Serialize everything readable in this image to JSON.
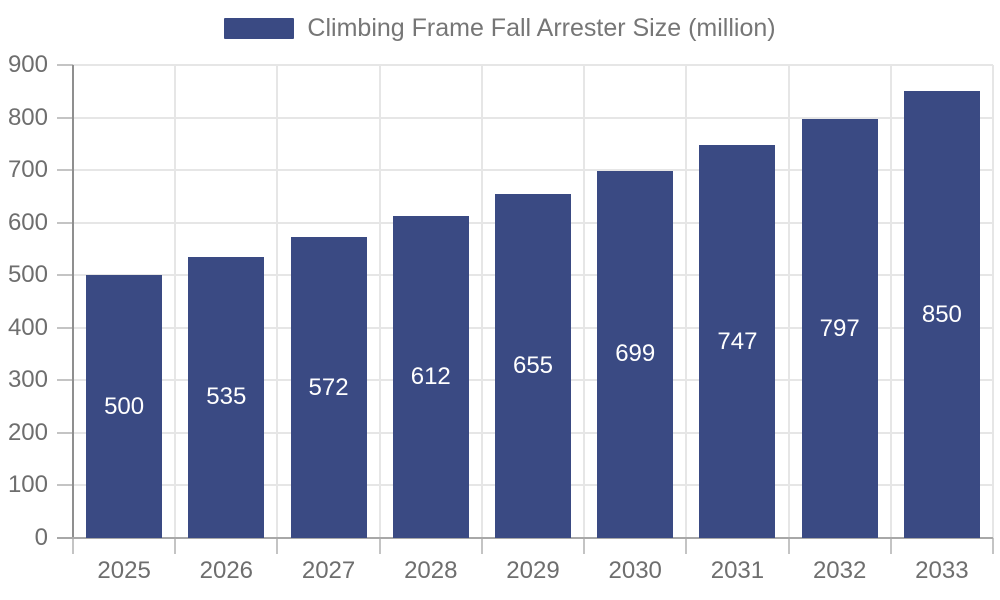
{
  "legend": {
    "label": "Climbing Frame Fall Arrester Size (million)"
  },
  "chart_data": {
    "type": "bar",
    "title": "Climbing Frame Fall Arrester Size (million)",
    "series_name": "Climbing Frame Fall Arrester Size (million)",
    "categories": [
      "2025",
      "2026",
      "2027",
      "2028",
      "2029",
      "2030",
      "2031",
      "2032",
      "2033"
    ],
    "values": [
      500,
      535,
      572,
      612,
      655,
      699,
      747,
      797,
      850
    ],
    "xlabel": "",
    "ylabel": "",
    "ylim": [
      0,
      900
    ],
    "ytick_step": 100,
    "ytick_labels": [
      "0",
      "100",
      "200",
      "300",
      "400",
      "500",
      "600",
      "700",
      "800",
      "900"
    ],
    "grid": "on",
    "legend_position": "top-center",
    "bar_value_labels_inside": true,
    "colors": {
      "bar": "#3a4a83",
      "bar_label": "#ffffff",
      "legend_text": "#767676",
      "axis_label": "#6e6e6e",
      "grid_line": "#e6e6e6",
      "y_axis_line": "#8f8f8f",
      "x_axis_line": "#a8a8a8",
      "tick": "#c4c4c4",
      "background": "#ffffff"
    }
  }
}
